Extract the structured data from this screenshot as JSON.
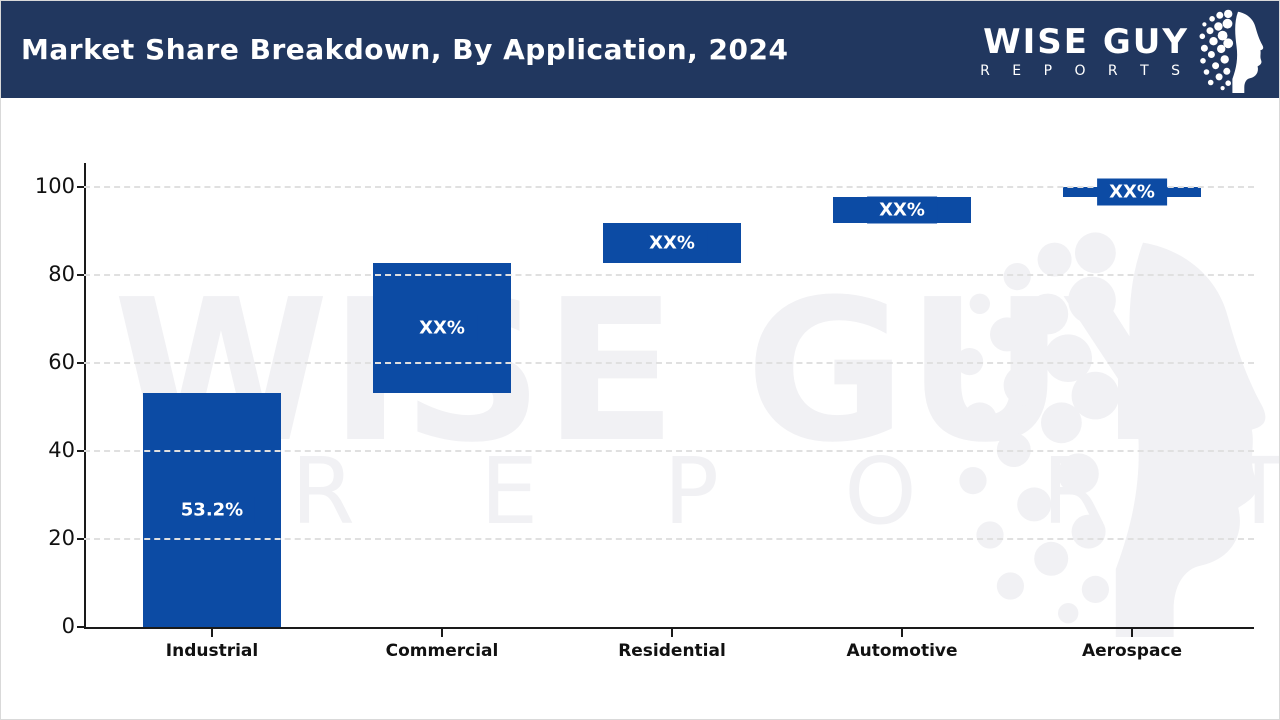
{
  "header": {
    "title": "Market Share Breakdown, By Application, 2024",
    "bg_color": "#21375F",
    "logo_line1": "WISE GUY",
    "logo_line2": "R E P O R T S"
  },
  "watermark": {
    "line1": "WISE GUY",
    "line2": "R E P O R T S",
    "color": "#f1f1f4"
  },
  "chart_data": {
    "type": "bar",
    "subtype": "waterfall",
    "title": "Market Share Breakdown, By Application, 2024",
    "categories": [
      "Industrial",
      "Commercial",
      "Residential",
      "Automotive",
      "Aerospace"
    ],
    "segments": [
      {
        "category": "Industrial",
        "start": 0,
        "end": 53.2,
        "value": 53.2,
        "label": "53.2%"
      },
      {
        "category": "Commercial",
        "start": 53.2,
        "end": 82.8,
        "value": 29.6,
        "label": "XX%"
      },
      {
        "category": "Residential",
        "start": 82.8,
        "end": 91.8,
        "value": 9.0,
        "label": "XX%"
      },
      {
        "category": "Automotive",
        "start": 91.8,
        "end": 97.7,
        "value": 5.9,
        "label": "XX%"
      },
      {
        "category": "Aerospace",
        "start": 97.7,
        "end": 100.0,
        "value": 2.3,
        "label": "XX%"
      }
    ],
    "xlabel": "",
    "ylabel": "",
    "y_ticks": [
      0,
      20,
      40,
      60,
      80,
      100
    ],
    "ylim": [
      0,
      105.5
    ],
    "grid": {
      "axis": "y",
      "style": "dashed",
      "color": "#e0e0e0"
    },
    "legend": "none",
    "bar_color": "#0C4BA4",
    "bar_label_text_color": "#ffffff",
    "axis_color": "#1a1a1a"
  }
}
